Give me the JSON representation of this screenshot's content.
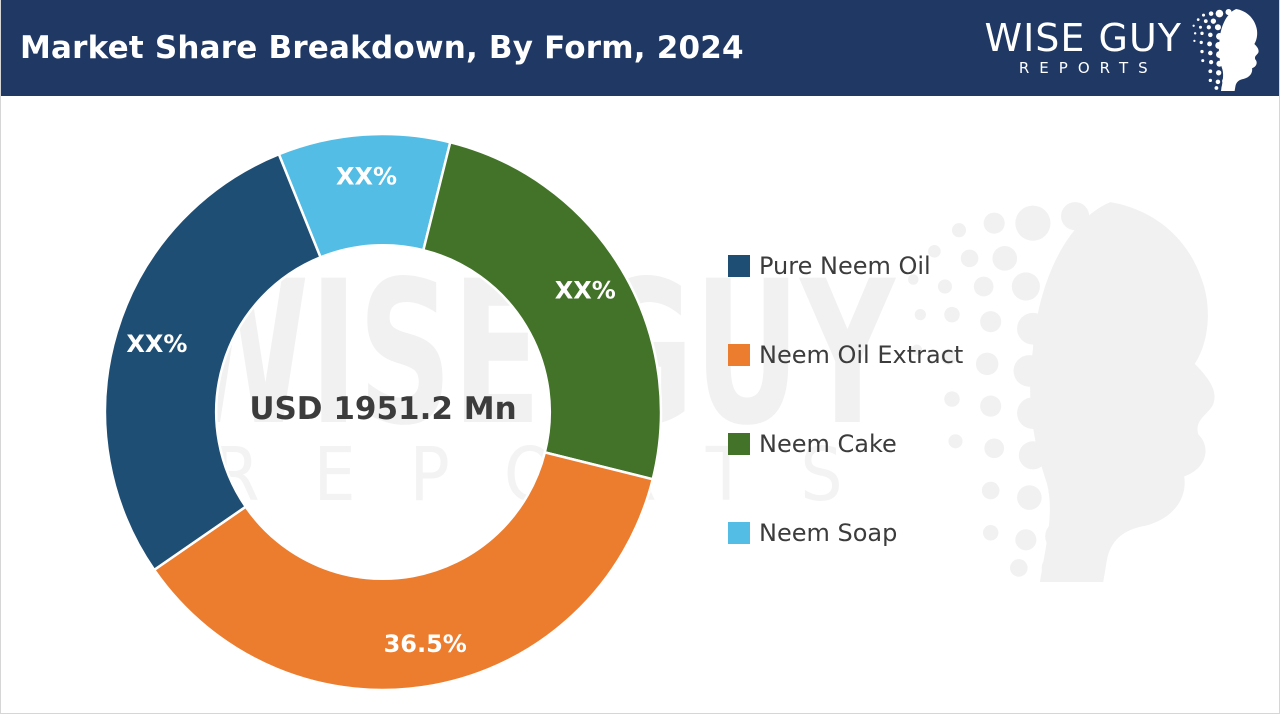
{
  "header": {
    "title": "Market Share Breakdown, By Form, 2024"
  },
  "logo": {
    "line1": "WISE GUY",
    "line2": "REPORTS",
    "icon": "dotted-head-profile-icon"
  },
  "watermark": {
    "line1": "WISE GUY",
    "line2": "REPORTS"
  },
  "chart_data": {
    "type": "pie",
    "subtype": "donut",
    "title": "Market Share Breakdown, By Form, 2024",
    "center_label": "USD 1951.2 Mn",
    "start_angle_deg": -22,
    "direction": "clockwise",
    "inner_radius_ratio": 0.6,
    "legend_position": "right",
    "segments": [
      {
        "name": "Neem Soap",
        "value_pct": 10,
        "label": "XX%",
        "color": "#53bde5"
      },
      {
        "name": "Neem Cake",
        "value_pct": 25,
        "label": "XX%",
        "color": "#437329"
      },
      {
        "name": "Neem Oil Extract",
        "value_pct": 36.5,
        "label": "36.5%",
        "color": "#ec7d2f"
      },
      {
        "name": "Pure Neem Oil",
        "value_pct": 28.5,
        "label": "XX%",
        "color": "#1f4e74"
      }
    ],
    "legend": [
      {
        "label": "Pure Neem Oil",
        "color": "#1f4e74"
      },
      {
        "label": "Neem Oil Extract",
        "color": "#ec7d2f"
      },
      {
        "label": "Neem Cake",
        "color": "#437329"
      },
      {
        "label": "Neem Soap",
        "color": "#53bde5"
      }
    ]
  },
  "colors": {
    "header_bg": "#203864",
    "page_bg": "#ffffff",
    "watermark": "#f1f1f1",
    "text_dark": "#3c3c3c",
    "frame_border": "#d6d6d6"
  }
}
